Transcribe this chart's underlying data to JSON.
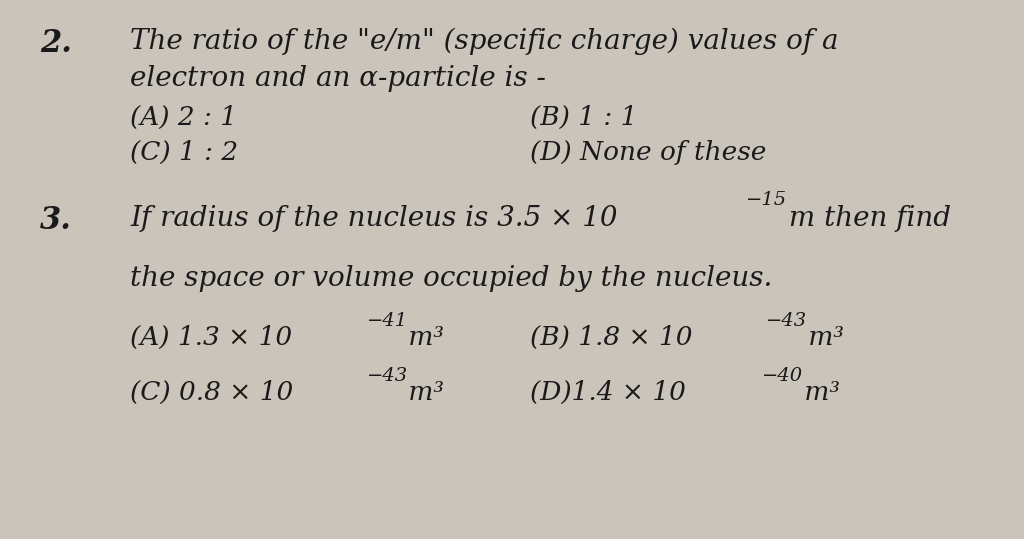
{
  "background_color": "#cac4bb",
  "text_color": "#1a1a1a",
  "font_size_main": 20,
  "font_size_options": 19,
  "font_size_number": 22,
  "font_size_super": 14,
  "q2_number": "2.",
  "q2_line1": "The ratio of the \"e/m\" (specific charge) values of a",
  "q2_line2": "electron and an α-particle is -",
  "q2_A": "(A) 2 : 1",
  "q2_B": "(B) 1 : 1",
  "q2_C": "(C) 1 : 2",
  "q2_D": "(D) None of these",
  "q3_number": "3.",
  "q3_line1_pre": "If radius of the nucleus is 3.5 × 10",
  "q3_line1_exp": "$^{-15}$",
  "q3_line1_post": " m then find",
  "q3_line2": "the space or volume occupied by the nucleus.",
  "q3_A_pre": "(A) 1.3 × 10",
  "q3_A_exp": "$^{-41}$",
  "q3_A_post": " m³",
  "q3_B_pre": "(B) 1.8 × 10",
  "q3_B_exp": "$^{-43}$",
  "q3_B_post": " m³",
  "q3_C_pre": "(C) 0.8 × 10",
  "q3_C_exp": "$^{-43}$",
  "q3_C_post": " m³",
  "q3_D_pre": "(D)1.4 × 10",
  "q3_D_exp": "$^{-40}$",
  "q3_D_post": " m³"
}
